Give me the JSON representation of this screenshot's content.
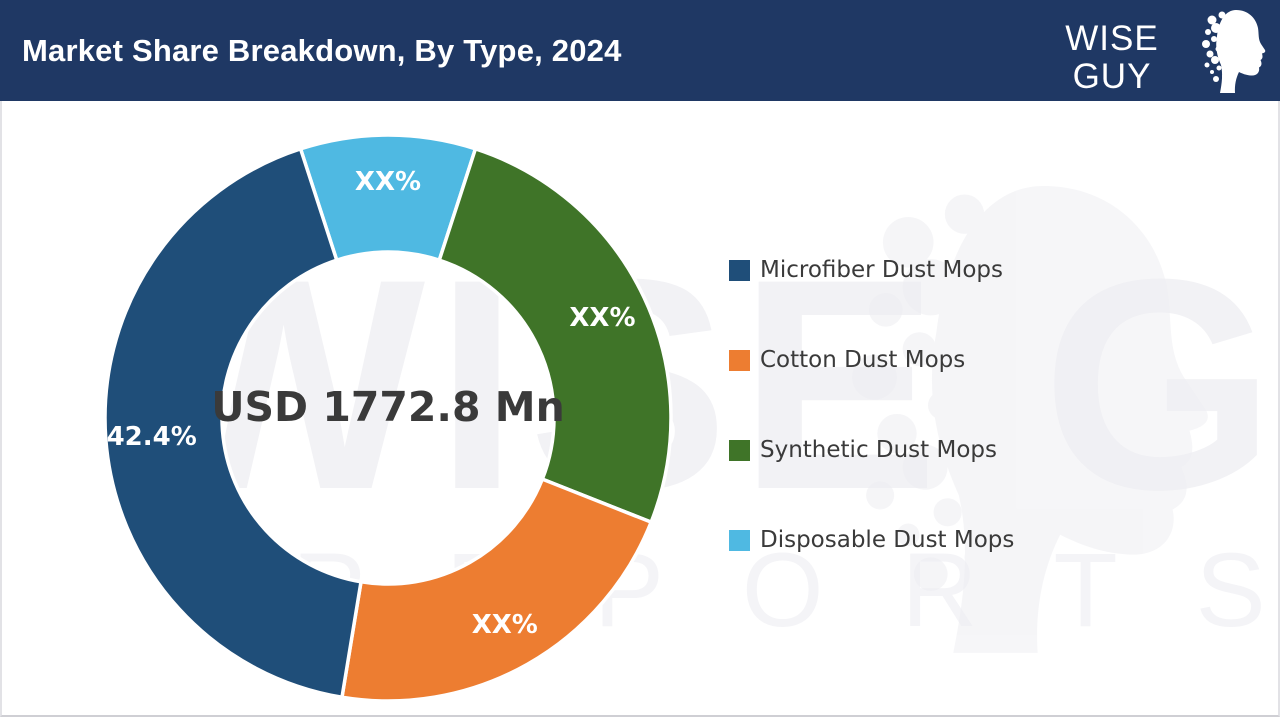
{
  "header": {
    "title": "Market Share Breakdown, By Type, 2024",
    "bg_color": "#1F3864",
    "logo": {
      "line1": "WISE GUY",
      "line2": "REPORTS"
    }
  },
  "chart_data": {
    "type": "pie",
    "subtype": "donut",
    "center_label": "USD 1772.8 Mn",
    "start_angle_deg": -18,
    "slices": [
      {
        "name": "Disposable Dust Mops",
        "label": "XX%",
        "value_pct": 10.0,
        "color": "#4FB9E2"
      },
      {
        "name": "Synthetic Dust Mops",
        "label": "XX%",
        "value_pct": 26.0,
        "color": "#3F7428"
      },
      {
        "name": "Cotton Dust Mops",
        "label": "XX%",
        "value_pct": 21.6,
        "color": "#ED7D31"
      },
      {
        "name": "Microfiber Dust Mops",
        "label": "42.4%",
        "value_pct": 42.4,
        "color": "#1F4E79"
      }
    ],
    "legend_position": "right",
    "legend": [
      {
        "label": "Microfiber Dust Mops",
        "color": "#1F4E79"
      },
      {
        "label": "Cotton Dust Mops",
        "color": "#ED7D31"
      },
      {
        "label": "Synthetic Dust Mops",
        "color": "#3F7428"
      },
      {
        "label": "Disposable Dust Mops",
        "color": "#4FB9E2"
      }
    ]
  },
  "watermark": {
    "line1": "WISE GUY",
    "line2": "REPORTS"
  },
  "colors": {
    "header_bg": "#1F3864",
    "header_text": "#ffffff",
    "chart_text": "#3a3a3a",
    "slice_label_text": "#ffffff"
  }
}
